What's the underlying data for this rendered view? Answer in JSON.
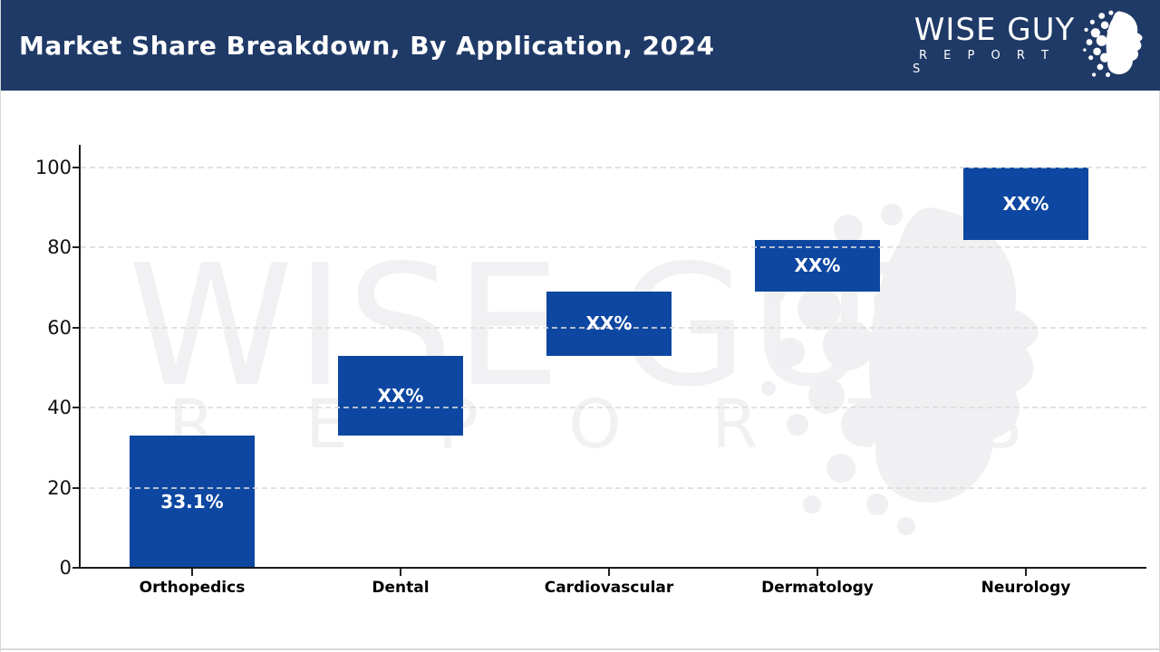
{
  "header": {
    "title": "Market Share Breakdown, By Application, 2024",
    "logo": {
      "line1": "WISE GUY",
      "line2": "R E P O R T S"
    }
  },
  "watermark": {
    "line1": "WISE GUY",
    "line2": "R E P O R T S"
  },
  "colors": {
    "header_bg": "#1f3a67",
    "bar": "#0d47a1",
    "bar_label": "#ffffff",
    "gridline": "#dcdcdc",
    "axis": "#1a1a1a",
    "watermark": "#f1f1f3",
    "border": "#d9d9d9"
  },
  "chart_data": {
    "type": "bar",
    "subtype": "waterfall",
    "title": "Market Share Breakdown, By Application, 2024",
    "categories": [
      "Orthopedics",
      "Dental",
      "Cardiovascular",
      "Dermatology",
      "Neurology"
    ],
    "segments": [
      {
        "category": "Orthopedics",
        "start": 0,
        "end": 33.1,
        "label": "33.1%"
      },
      {
        "category": "Dental",
        "start": 33.1,
        "end": 53,
        "label": "XX%"
      },
      {
        "category": "Cardiovascular",
        "start": 53,
        "end": 69,
        "label": "XX%"
      },
      {
        "category": "Dermatology",
        "start": 69,
        "end": 82,
        "label": "XX%"
      },
      {
        "category": "Neurology",
        "start": 82,
        "end": 100,
        "label": "XX%"
      }
    ],
    "yticks": [
      0,
      20,
      40,
      60,
      80,
      100
    ],
    "ylim": [
      0,
      105
    ],
    "xlabel": "",
    "ylabel": "",
    "grid": "horizontal-dashed",
    "legend": "none",
    "bar_color": "#0d47a1",
    "value_label_color": "#ffffff"
  }
}
